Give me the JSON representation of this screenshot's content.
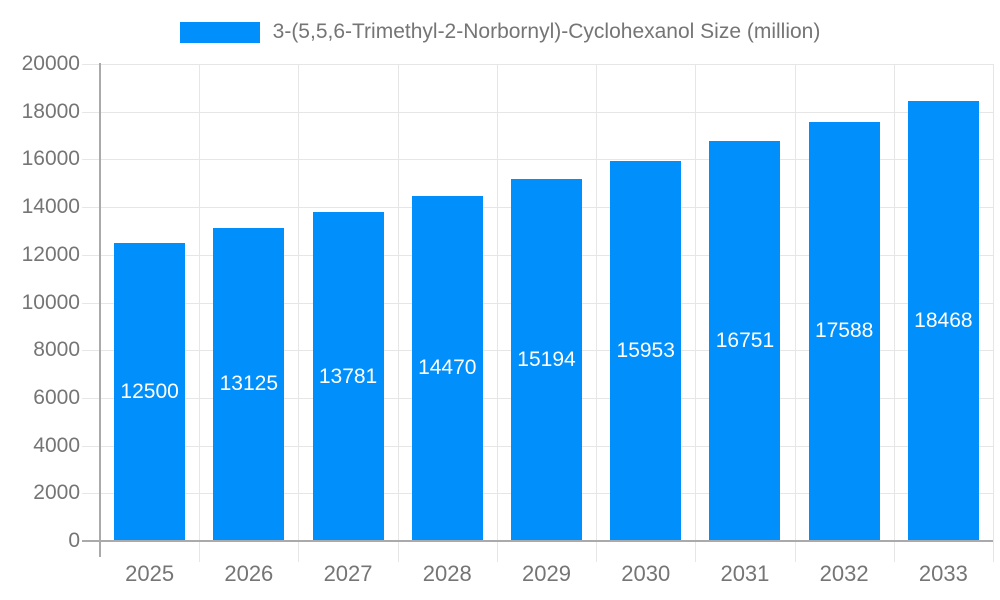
{
  "legend": {
    "label": "3-(5,5,6-Trimethyl-2-Norbornyl)-Cyclohexanol Size (million)"
  },
  "chart_data": {
    "type": "bar",
    "title": "3-(5,5,6-Trimethyl-2-Norbornyl)-Cyclohexanol Size (million)",
    "series": [
      {
        "name": "3-(5,5,6-Trimethyl-2-Norbornyl)-Cyclohexanol Size (million)",
        "values": [
          12500,
          13125,
          13781,
          14470,
          15194,
          15953,
          16751,
          17588,
          18468
        ]
      }
    ],
    "categories": [
      "2025",
      "2026",
      "2027",
      "2028",
      "2029",
      "2030",
      "2031",
      "2032",
      "2033"
    ],
    "data_labels": [
      "12500",
      "13125",
      "13781",
      "14470",
      "15194",
      "15953",
      "16751",
      "17588",
      "18468"
    ],
    "xlabel": "",
    "ylabel": "",
    "ylim": [
      0,
      20000
    ],
    "ytick_step": 2000,
    "yticks": [
      0,
      2000,
      4000,
      6000,
      8000,
      10000,
      12000,
      14000,
      16000,
      18000,
      20000
    ],
    "grid": true,
    "legend_position": "top",
    "colors": {
      "bar": "#008FFB",
      "bar_label_text": "#ffffff",
      "axis_text": "#757575",
      "legend_text": "#757575",
      "gridline": "#e6e6e6",
      "axis_line": "#aaaaaa",
      "background": "#ffffff"
    }
  }
}
